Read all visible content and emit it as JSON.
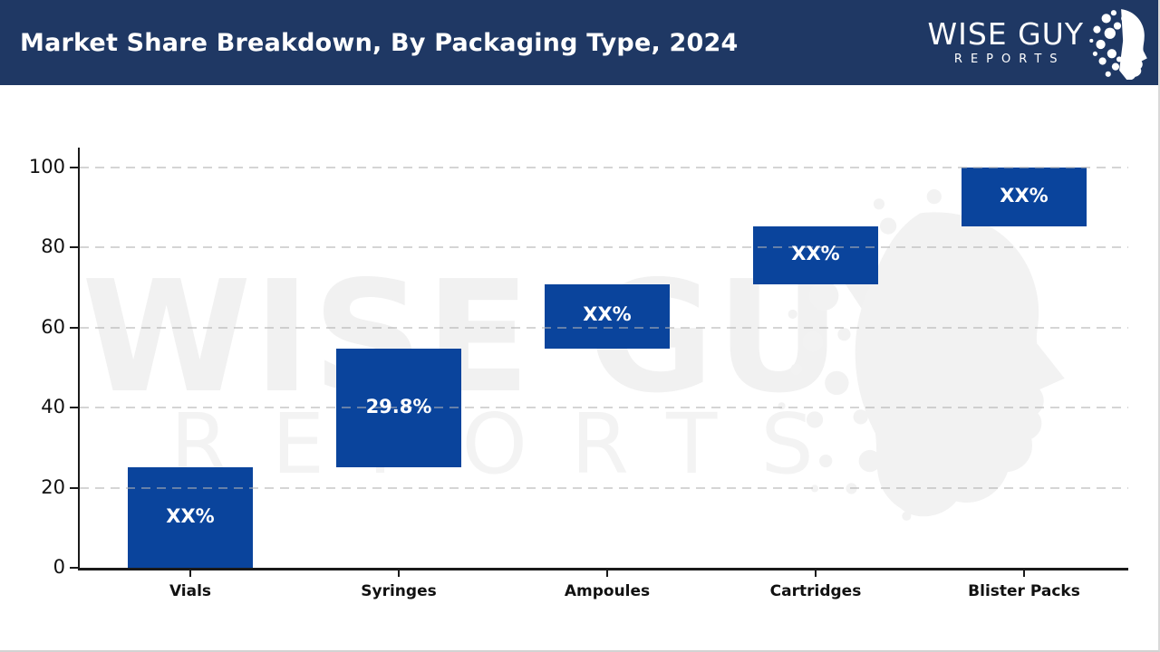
{
  "header": {
    "title": "Market Share Breakdown, By Packaging Type, 2024",
    "logo_line1": "WISE GUY",
    "logo_line2": "REPORTS"
  },
  "watermark": {
    "line1": "WISE GUY",
    "line2": "REPORTS"
  },
  "colors": {
    "header_bg": "#1f3864",
    "bar": "#0a449c",
    "bar_label": "#ffffff",
    "axis": "#1a1a1a",
    "grid": "#d9d9d9",
    "watermark": "#f1f1f1"
  },
  "chart_data": {
    "type": "bar",
    "subtype": "waterfall",
    "title": "Market Share Breakdown, By Packaging Type, 2024",
    "xlabel": "",
    "ylabel": "",
    "categories": [
      "Vials",
      "Syringes",
      "Ampoules",
      "Cartridges",
      "Blister Packs"
    ],
    "series": [
      {
        "name": "Market Share (%)",
        "segments": [
          {
            "category": "Vials",
            "start": 0,
            "end": 25.0,
            "label": "XX%"
          },
          {
            "category": "Syringes",
            "start": 25.0,
            "end": 54.8,
            "label": "29.8%"
          },
          {
            "category": "Ampoules",
            "start": 54.8,
            "end": 70.8,
            "label": "XX%"
          },
          {
            "category": "Cartridges",
            "start": 70.8,
            "end": 85.2,
            "label": "XX%"
          },
          {
            "category": "Blister Packs",
            "start": 85.2,
            "end": 100.0,
            "label": "XX%"
          }
        ]
      }
    ],
    "yticks": [
      0,
      20,
      40,
      60,
      80,
      100
    ],
    "ylim": [
      0,
      104.5
    ],
    "grid": "horizontal-dashed",
    "legend": "none"
  }
}
